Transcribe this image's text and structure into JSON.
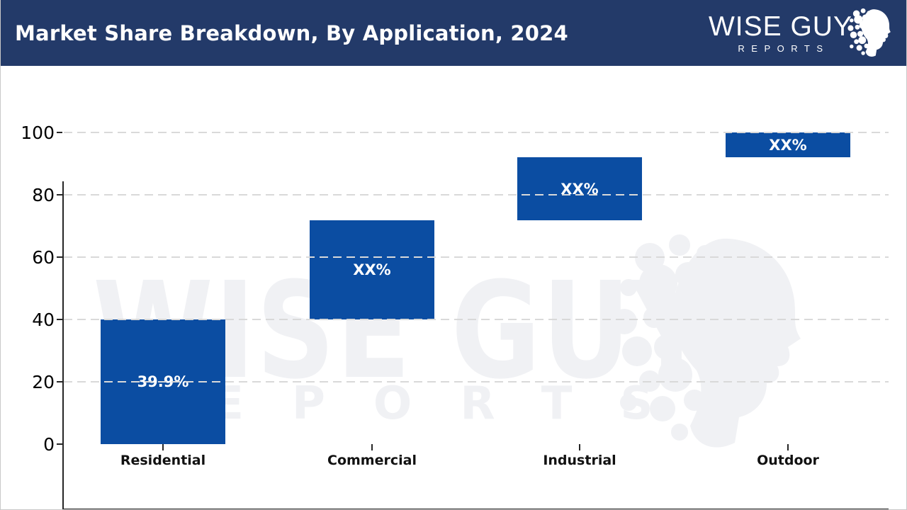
{
  "header": {
    "title": "Market Share Breakdown, By Application, 2024",
    "logo": {
      "name_line": "WISE GUY",
      "sub_line": "REPORTS"
    }
  },
  "watermark": {
    "line1": "WISE GUY",
    "line2": "REPORTS"
  },
  "colors": {
    "header_bg": "#233a69",
    "bar": "#0b4da2",
    "grid": "#d9d9d9",
    "axis": "#262626",
    "watermark": "#f0f1f4",
    "logo_fg": "#ffffff"
  },
  "chart_data": {
    "type": "bar",
    "subtype": "waterfall-breakdown",
    "title": "Market Share Breakdown, By Application, 2024",
    "categories": [
      "Residential",
      "Commercial",
      "Industrial",
      "Outdoor"
    ],
    "segments": [
      {
        "category": "Residential",
        "start": 0,
        "end": 39.9,
        "label": "39.9%"
      },
      {
        "category": "Commercial",
        "start": 39.9,
        "end": 71.8,
        "label": "XX%"
      },
      {
        "category": "Industrial",
        "start": 71.8,
        "end": 92.0,
        "label": "XX%"
      },
      {
        "category": "Outdoor",
        "start": 92.0,
        "end": 100,
        "label": "XX%"
      }
    ],
    "yticks": [
      0,
      20,
      40,
      60,
      80,
      100
    ],
    "ylim": [
      0,
      100
    ],
    "grid": "horizontal-dashed",
    "legend": "none",
    "xlabel": "",
    "ylabel": ""
  }
}
